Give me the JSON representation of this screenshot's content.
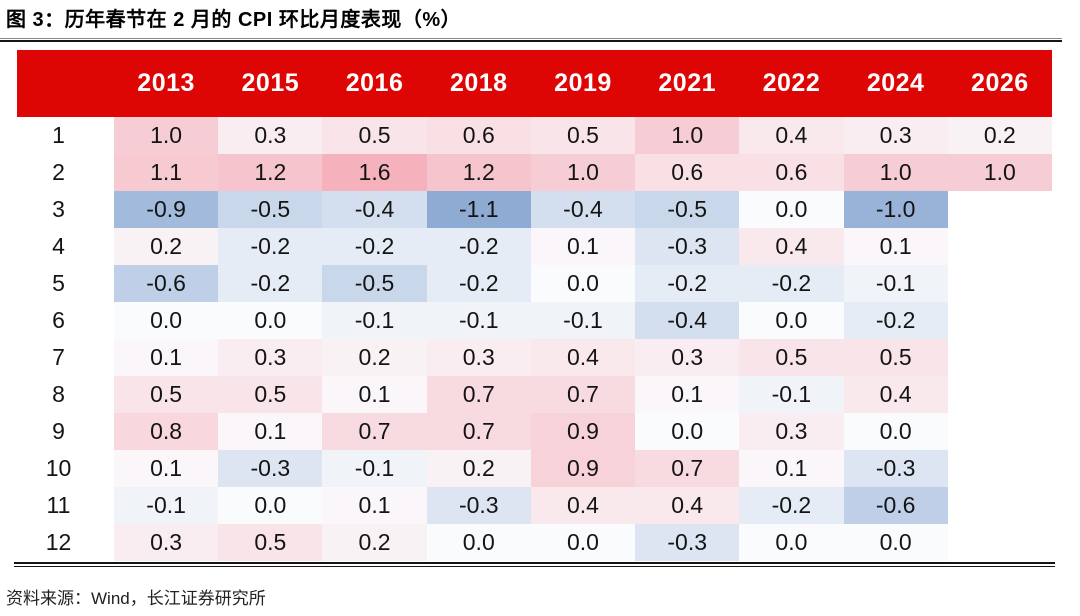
{
  "page": {
    "title": "图 3：历年春节在 2 月的 CPI 环比月度表现（%）",
    "source_note": "资料来源：Wind，长江证券研究所"
  },
  "colors": {
    "header_bg": "#DD0605",
    "header_text": "#FFFFFF",
    "rule_color": "#151515",
    "positive_max_color": "#F5B2BD",
    "negative_max_color": "#8EABD4",
    "neutral_color": "#FAFBFD"
  },
  "chart_data": {
    "type": "heatmap",
    "title": "图 3：历年春节在 2 月的 CPI 环比月度表现（%）",
    "units": "%",
    "columns": [
      "2013",
      "2015",
      "2016",
      "2018",
      "2019",
      "2021",
      "2022",
      "2024",
      "2026"
    ],
    "row_label_header": "",
    "row_labels": [
      "1",
      "2",
      "3",
      "4",
      "5",
      "6",
      "7",
      "8",
      "9",
      "10",
      "11",
      "12"
    ],
    "rows": [
      [
        1.0,
        0.3,
        0.5,
        0.6,
        0.5,
        1.0,
        0.4,
        0.3,
        0.2
      ],
      [
        1.1,
        1.2,
        1.6,
        1.2,
        1.0,
        0.6,
        0.6,
        1.0,
        1.0
      ],
      [
        -0.9,
        -0.5,
        -0.4,
        -1.1,
        -0.4,
        -0.5,
        0.0,
        -1.0,
        null
      ],
      [
        0.2,
        -0.2,
        -0.2,
        -0.2,
        0.1,
        -0.3,
        0.4,
        0.1,
        null
      ],
      [
        -0.6,
        -0.2,
        -0.5,
        -0.2,
        0.0,
        -0.2,
        -0.2,
        -0.1,
        null
      ],
      [
        0.0,
        0.0,
        -0.1,
        -0.1,
        -0.1,
        -0.4,
        0.0,
        -0.2,
        null
      ],
      [
        0.1,
        0.3,
        0.2,
        0.3,
        0.4,
        0.3,
        0.5,
        0.5,
        null
      ],
      [
        0.5,
        0.5,
        0.1,
        0.7,
        0.7,
        0.1,
        -0.1,
        0.4,
        null
      ],
      [
        0.8,
        0.1,
        0.7,
        0.7,
        0.9,
        0.0,
        0.3,
        0.0,
        null
      ],
      [
        0.1,
        -0.3,
        -0.1,
        0.2,
        0.9,
        0.7,
        0.1,
        -0.3,
        null
      ],
      [
        -0.1,
        0.0,
        0.1,
        -0.3,
        0.4,
        0.4,
        -0.2,
        -0.6,
        null
      ],
      [
        0.3,
        0.5,
        0.2,
        0.0,
        0.0,
        -0.3,
        0.0,
        0.0,
        null
      ]
    ],
    "color_scale": {
      "min": -1.1,
      "mid": 0.0,
      "max": 1.6
    },
    "legend": "none",
    "value_decimals": 1
  }
}
